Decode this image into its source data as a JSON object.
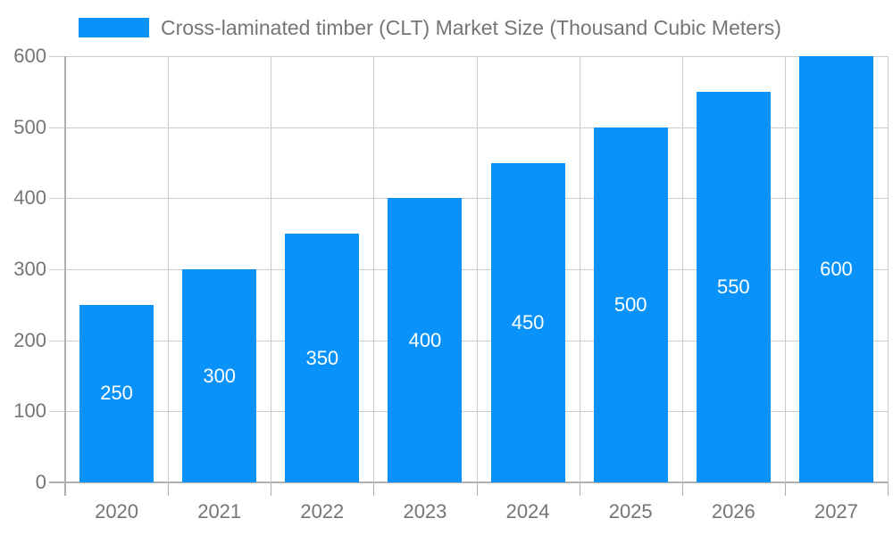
{
  "legend": {
    "label": "Cross-laminated timber (CLT) Market Size (Thousand Cubic Meters)"
  },
  "colors": {
    "bar": "#0992fa",
    "axis_text": "#757575",
    "value_text": "#ffffff",
    "gridline": "#cccccc",
    "axis_line": "#b0b0b0"
  },
  "chart_data": {
    "type": "bar",
    "title": "Cross-laminated timber (CLT) Market Size (Thousand Cubic Meters)",
    "categories": [
      "2020",
      "2021",
      "2022",
      "2023",
      "2024",
      "2025",
      "2026",
      "2027"
    ],
    "values": [
      250,
      300,
      350,
      400,
      450,
      500,
      550,
      600
    ],
    "y_ticks": [
      0,
      100,
      200,
      300,
      400,
      500,
      600
    ],
    "ylim": [
      0,
      600
    ],
    "xlabel": "",
    "ylabel": "",
    "grid": true,
    "legend_position": "top-left",
    "bar_label_position": "inside-center"
  }
}
